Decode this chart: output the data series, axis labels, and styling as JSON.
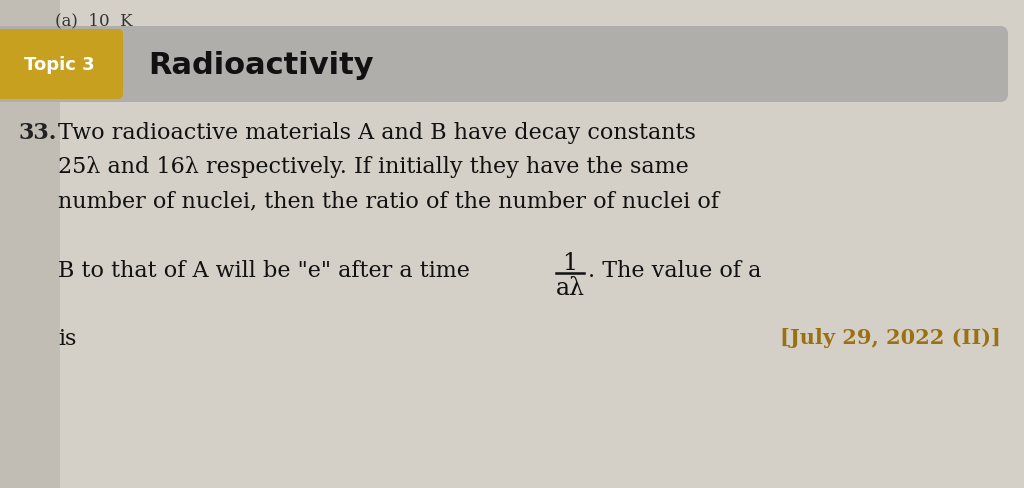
{
  "page_bg": "#ccc9c0",
  "banner_bg": "#b0aeaa",
  "topic_box_color": "#c8a020",
  "topic_box_text": "Topic 3",
  "topic_title": "Radioactivity",
  "top_text": "(a)  10  K",
  "question_number": "33.",
  "line1": "Two radioactive materials A and B have decay constants",
  "line2": "25λ and 16λ respectively. If initially they have the same",
  "line3": "number of nuclei, then the ratio of the number of nuclei of",
  "line4": "B to that of A will be \"e\" after a time",
  "fraction_numerator": "1",
  "fraction_denominator": "aλ",
  "line4_end": ". The value of a",
  "bottom_line": "is",
  "citation": "[July 29, 2022 (II)]",
  "citation_color": "#9B7010",
  "text_color": "#111111",
  "number_color": "#222222"
}
